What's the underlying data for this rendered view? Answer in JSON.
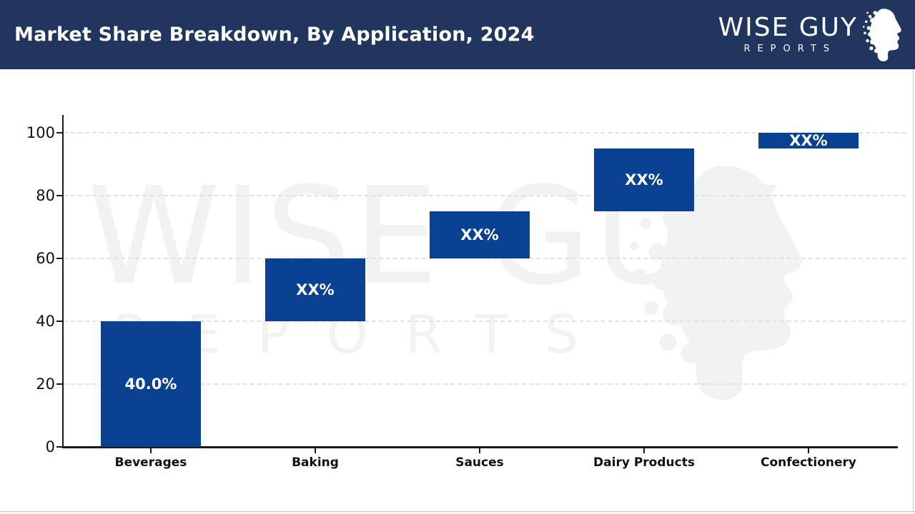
{
  "header": {
    "title": "Market Share Breakdown, By Application, 2024",
    "logo_line1": "WISE GUY",
    "logo_line2": "REPORTS",
    "bg_color": "#21365f",
    "text_color": "#ffffff"
  },
  "watermark": {
    "line1": "WISE GUY",
    "line2": "REPORTS",
    "color": "#f2f2f2"
  },
  "chart_data": {
    "type": "bar",
    "subtype": "waterfall",
    "title": "Market Share Breakdown, By Application, 2024",
    "categories": [
      "Beverages",
      "Baking",
      "Sauces",
      "Dairy Products",
      "Confectionery"
    ],
    "segments": [
      {
        "category": "Beverages",
        "start": 0,
        "end": 40,
        "value": 40,
        "label": "40.0%"
      },
      {
        "category": "Baking",
        "start": 40,
        "end": 60,
        "value": 20,
        "label": "XX%"
      },
      {
        "category": "Sauces",
        "start": 60,
        "end": 75,
        "value": 15,
        "label": "XX%"
      },
      {
        "category": "Dairy Products",
        "start": 75,
        "end": 95,
        "value": 20,
        "label": "XX%"
      },
      {
        "category": "Confectionery",
        "start": 95,
        "end": 100,
        "value": 5,
        "label": "XX%"
      }
    ],
    "yticks": [
      0,
      20,
      40,
      60,
      80,
      100
    ],
    "ylim": [
      0,
      105
    ],
    "xlabel": "",
    "ylabel": "",
    "bar_color": "#0b4191",
    "label_color": "#ffffff",
    "grid": true,
    "grid_style": "dashed",
    "legend": false
  }
}
